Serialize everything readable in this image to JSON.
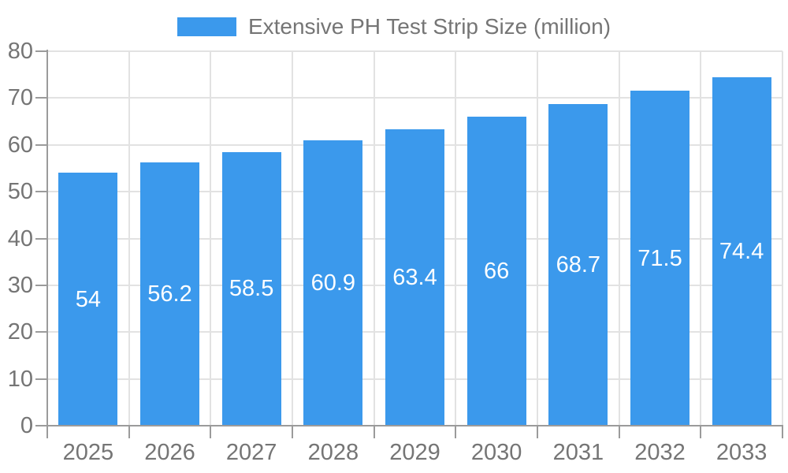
{
  "chart_data": {
    "type": "bar",
    "title": "",
    "xlabel": "",
    "ylabel": "",
    "categories": [
      "2025",
      "2026",
      "2027",
      "2028",
      "2029",
      "2030",
      "2031",
      "2032",
      "2033"
    ],
    "series": [
      {
        "name": "Extensive PH Test Strip Size (million)",
        "values": [
          54,
          56.2,
          58.5,
          60.9,
          63.4,
          66,
          68.7,
          71.5,
          74.4
        ]
      }
    ],
    "value_labels": [
      "54",
      "56.2",
      "58.5",
      "60.9",
      "63.4",
      "66",
      "68.7",
      "71.5",
      "74.4"
    ],
    "ylim": [
      0,
      80
    ],
    "yticks": [
      0,
      10,
      20,
      30,
      40,
      50,
      60,
      70,
      80
    ],
    "ytick_labels": [
      "0",
      "10",
      "20",
      "30",
      "40",
      "50",
      "60",
      "70",
      "80"
    ],
    "grid": true,
    "legend_position": "top",
    "colors": {
      "bar": "#3b99ec",
      "grid": "#e2e2e2",
      "axis": "#9b9b9b",
      "tick_text": "#757575",
      "value_text": "#ffffff",
      "background": "#ffffff"
    }
  }
}
